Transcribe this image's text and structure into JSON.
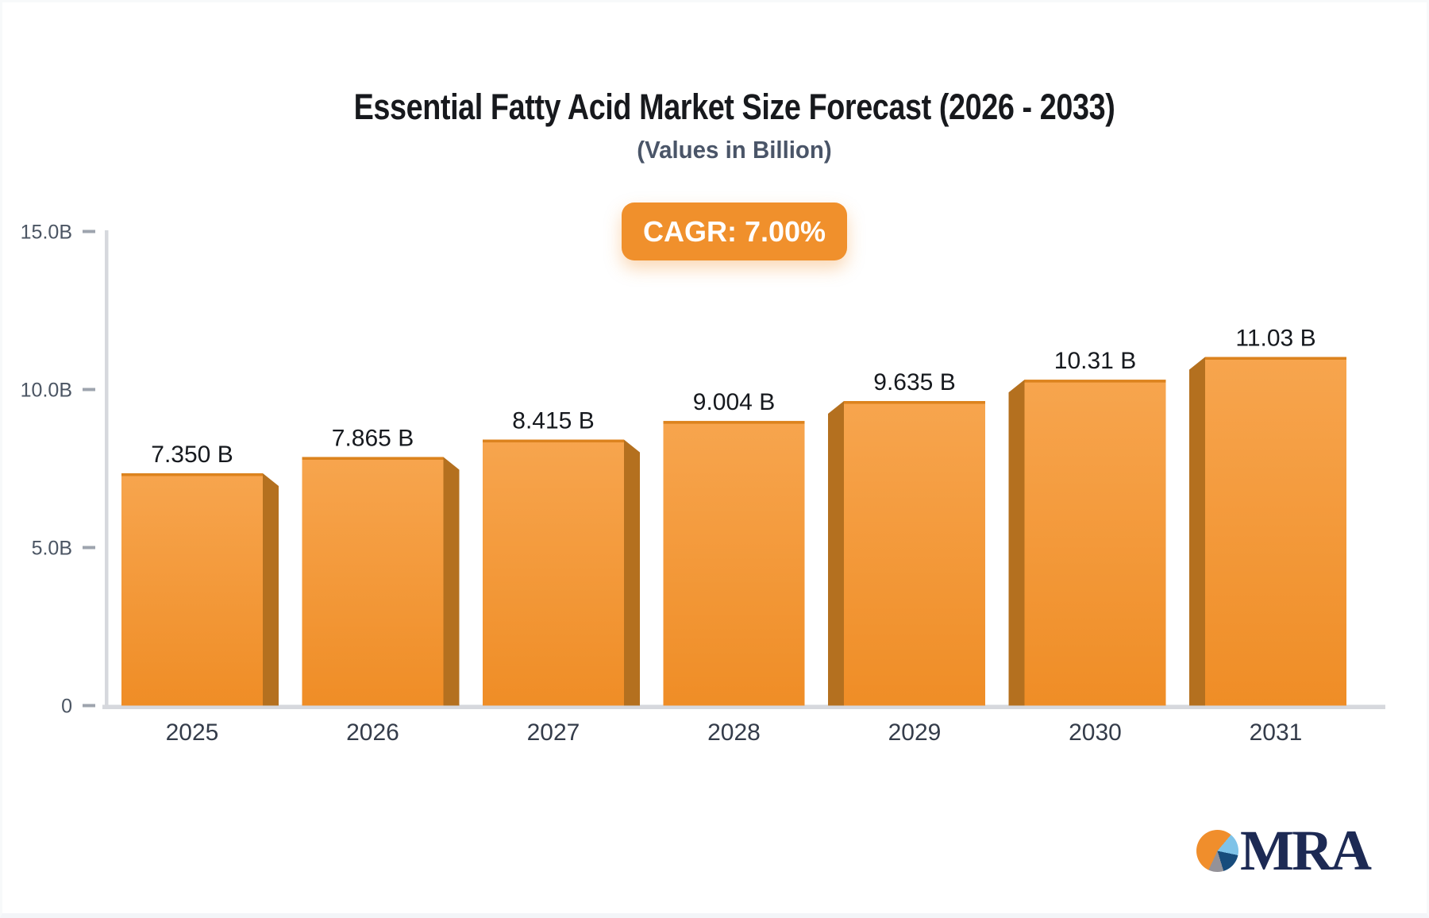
{
  "header": {
    "title": "Essential Fatty Acid Market Size Forecast (2026 - 2033)",
    "subtitle": "(Values in Billion)",
    "cagr_label": "CAGR: 7.00%"
  },
  "colors": {
    "badge_bg": "#F0902C",
    "badge_text": "#ffffff",
    "title_text": "#17191d",
    "subtitle_text": "#4a5568",
    "bar_front_top": "#F7A54E",
    "bar_front_bottom": "#EF8D26",
    "bar_side": "#B4701F",
    "bar_top_edge": "#DC831E",
    "axis_line": "#d6d8dd",
    "tick_dash": "#9ea4ae",
    "y_label_text": "#4b5563",
    "x_label_text": "#343c4a",
    "value_label_text": "#16191e"
  },
  "chart_data": {
    "type": "bar",
    "title": "Essential Fatty Acid Market Size Forecast (2026 - 2033)",
    "subtitle": "(Values in Billion)",
    "annotation": "CAGR: 7.00%",
    "categories": [
      "2025",
      "2026",
      "2027",
      "2028",
      "2029",
      "2030",
      "2031"
    ],
    "values": [
      7.35,
      7.865,
      8.415,
      9.004,
      9.635,
      10.31,
      11.03
    ],
    "value_labels": [
      "7.350 B",
      "7.865 B",
      "8.415 B",
      "9.004 B",
      "9.635 B",
      "10.31 B",
      "11.03 B"
    ],
    "ylim": [
      0,
      15
    ],
    "yticks": [
      {
        "value": 15,
        "label": "15.0B"
      },
      {
        "value": 10,
        "label": "10.0B"
      },
      {
        "value": 5,
        "label": "5.0B"
      },
      {
        "value": 0,
        "label": "0"
      }
    ],
    "grid": false,
    "legend": false,
    "bar_style": "3d-perspective-from-center"
  },
  "logo": {
    "text": "MRA",
    "text_color": "#1d2a54",
    "pie_colors": {
      "orange": "#F08E2C",
      "light_blue": "#7FC3E8",
      "navy": "#174C7C",
      "gray": "#949298"
    }
  }
}
